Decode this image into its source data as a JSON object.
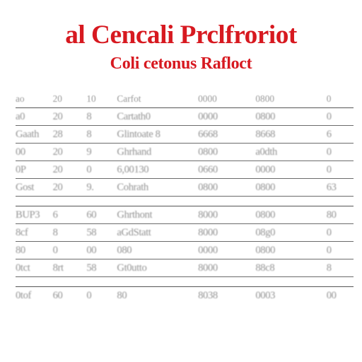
{
  "title_main": {
    "text": "al Cencali Prclfroriot",
    "color": "#d71920",
    "fontsize_pt": 28
  },
  "title_sub": {
    "text": "Coli cetonus Rafloct",
    "color": "#d71920",
    "fontsize_pt": 18
  },
  "table": {
    "type": "table",
    "text_color": "#444444",
    "grid_color": "#6b6b6b",
    "header_fontsize_pt": 10,
    "cell_fontsize_pt": 11,
    "columns": [
      {
        "label": "ao",
        "width_pct": 11
      },
      {
        "label": "20",
        "width_pct": 10
      },
      {
        "label": "10",
        "width_pct": 9
      },
      {
        "label": "Carfot",
        "width_pct": 24
      },
      {
        "label": "0000",
        "width_pct": 17
      },
      {
        "label": "0800",
        "width_pct": 21
      },
      {
        "label": "0",
        "width_pct": 8
      }
    ],
    "groups": [
      {
        "rows": [
          [
            "a0",
            "20",
            "8",
            "Cartath0",
            "0000",
            "0800",
            "0"
          ],
          [
            "Gaath",
            "28",
            "8",
            "Glintoate 8",
            "6668",
            "8668",
            "6"
          ],
          [
            "00",
            "20",
            "9",
            "Ghrhand",
            "0800",
            "a0dth",
            "0"
          ],
          [
            "0P",
            "20",
            "0",
            "6,00130",
            "0660",
            "0000",
            "0"
          ],
          [
            "Gost",
            "20",
            "9.",
            "Cohrath",
            "0800",
            "0800",
            "63"
          ]
        ]
      },
      {
        "rows": [
          [
            "BUP3",
            "6",
            "60",
            "Ghrthont",
            "8000",
            "0800",
            "80"
          ],
          [
            "8cf",
            "8",
            "58",
            "aGdStatt",
            "8000",
            "08g0",
            "0"
          ],
          [
            "80",
            "0",
            "00",
            "080",
            "0000",
            "0800",
            "0"
          ],
          [
            "0tct",
            "8rt",
            "58",
            "Gt0utto",
            "8000",
            "88c8",
            "8"
          ]
        ]
      },
      {
        "rows": [
          [
            "0tof",
            "60",
            "0",
            "80",
            "8038",
            "0003",
            "00"
          ]
        ]
      }
    ]
  }
}
